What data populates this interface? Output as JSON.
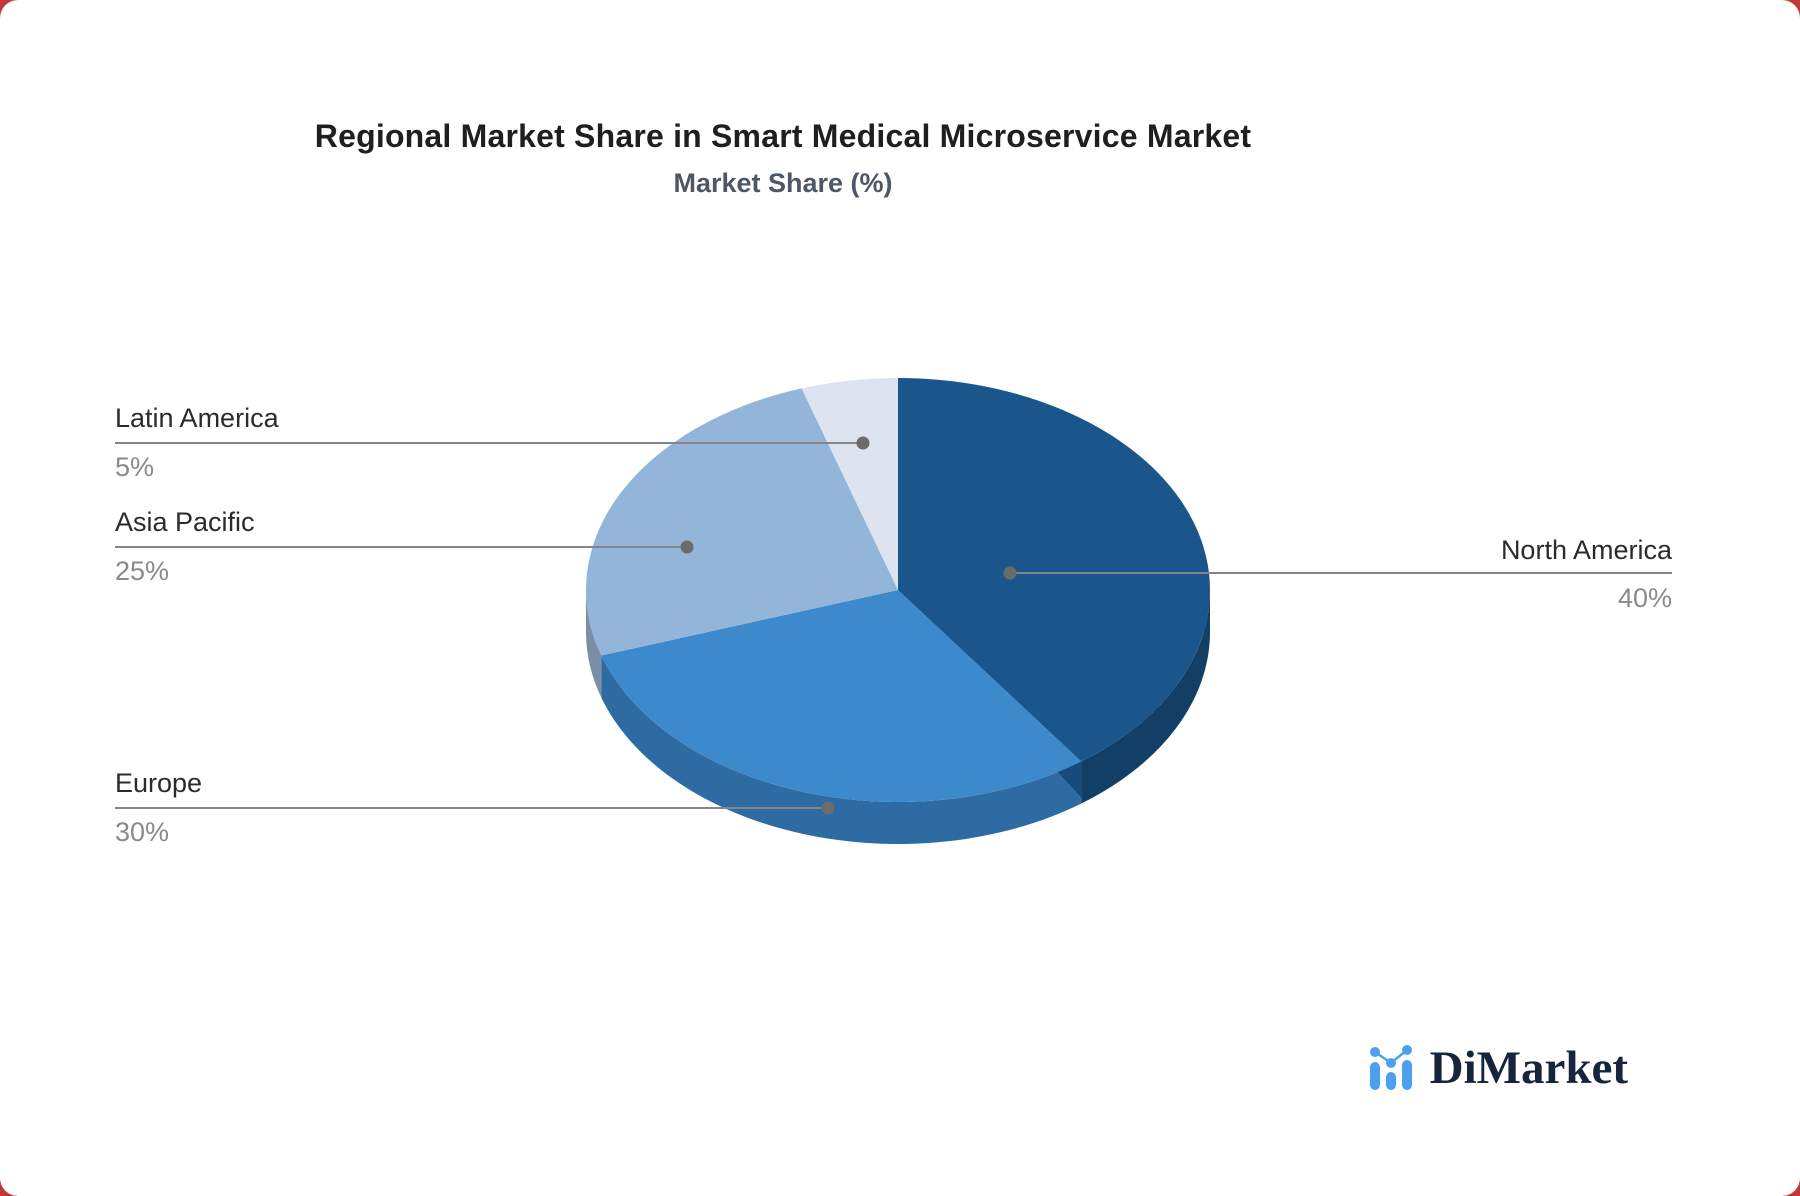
{
  "title": "Regional Market Share in Smart Medical Microservice Market",
  "subtitle": "Market Share (%)",
  "brand": {
    "name": "DiMarket"
  },
  "chart_data": {
    "type": "pie",
    "title": "Regional Market Share in Smart Medical Microservice Market",
    "subtitle": "Market Share (%)",
    "unit": "%",
    "style": "3d-pie",
    "start_angle_deg": 0,
    "direction": "clockwise",
    "legend_position": "callout-labels",
    "leader_line_color": "#858585",
    "leader_dot_color": "#6b6b6b",
    "slices": [
      {
        "label": "North America",
        "value": 40,
        "display": "40%",
        "color": "#1A568C",
        "side_color": "#123F66"
      },
      {
        "label": "Europe",
        "value": 30,
        "display": "30%",
        "color": "#3C89CB",
        "side_color": "#2D6BA2"
      },
      {
        "label": "Asia Pacific",
        "value": 25,
        "display": "25%",
        "color": "#93B5D9",
        "side_color": "#7B8EA4"
      },
      {
        "label": "Latin America",
        "value": 5,
        "display": "5%",
        "color": "#DDE4EF",
        "side_color": "#C5CFDD"
      }
    ]
  }
}
